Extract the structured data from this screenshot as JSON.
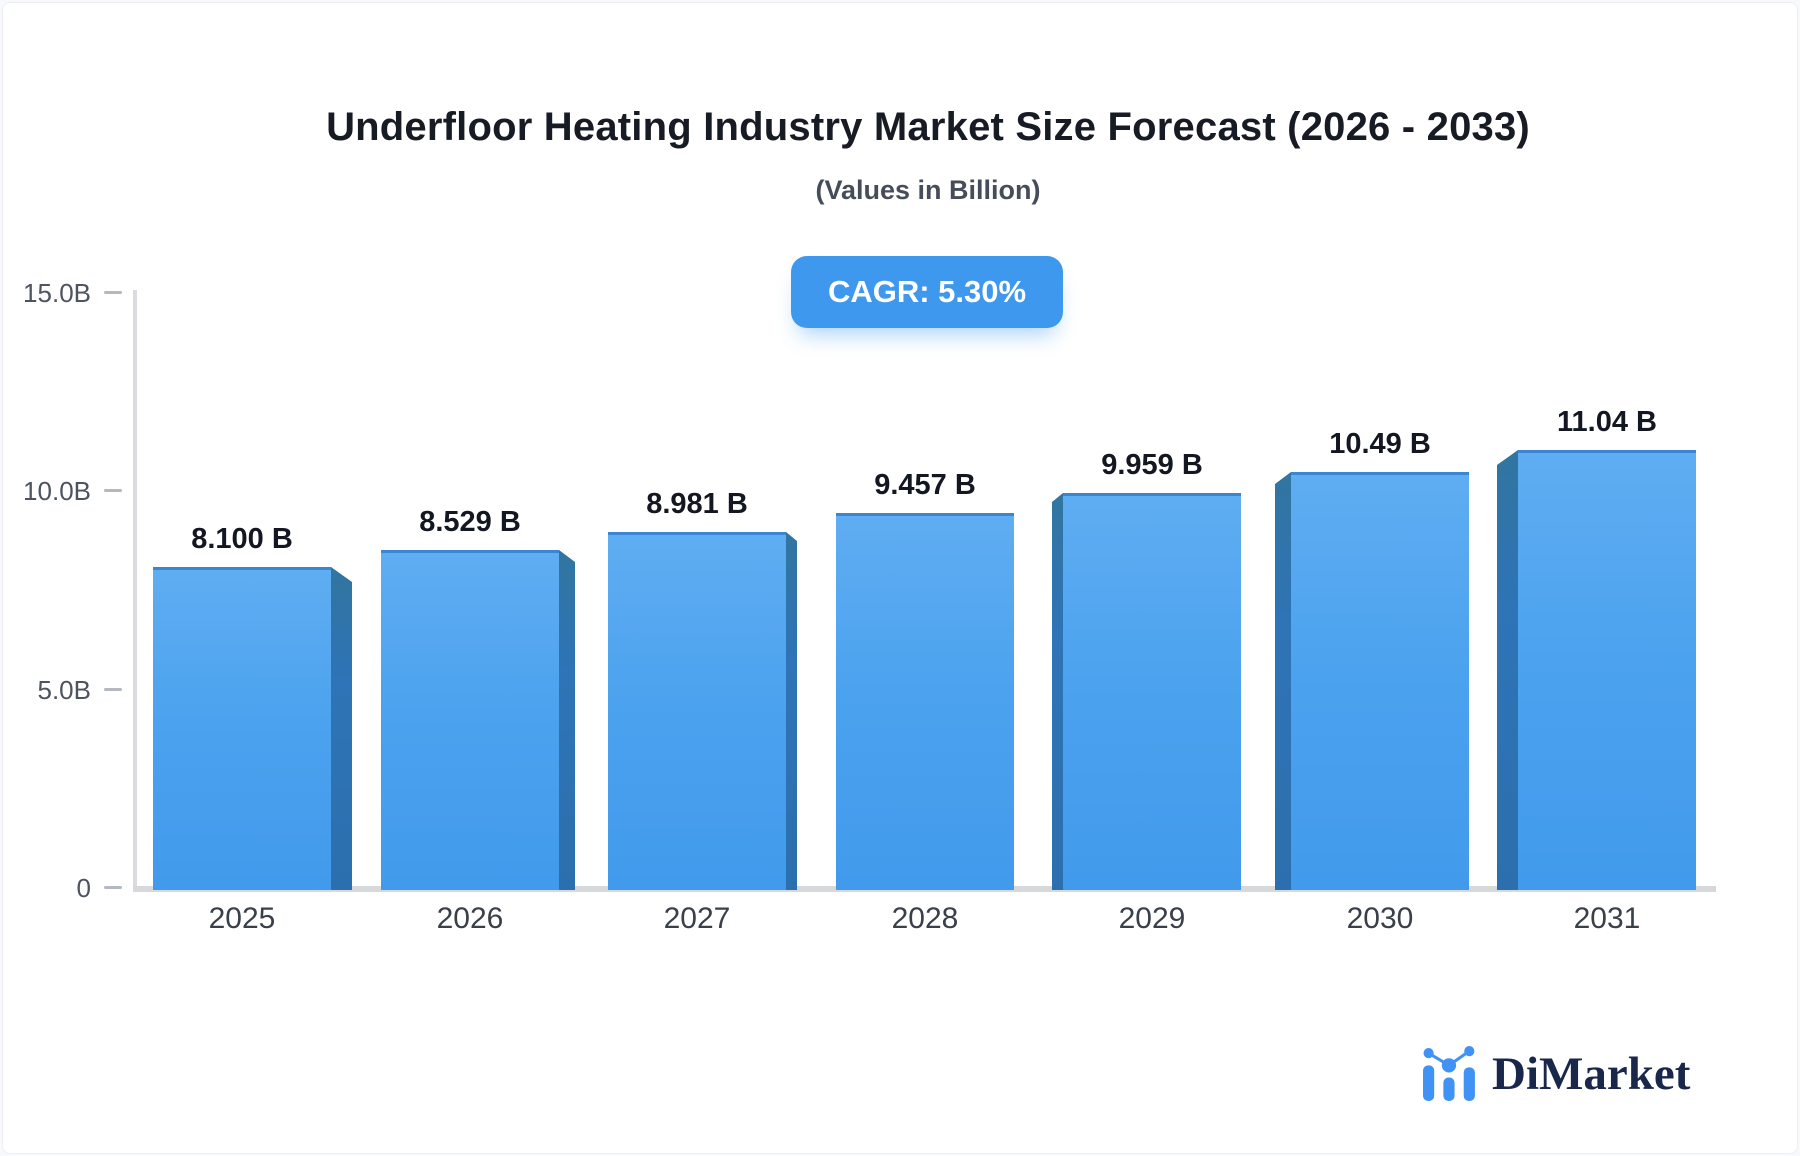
{
  "header": {
    "title": "Underfloor Heating Industry Market Size Forecast (2026 - 2033)",
    "subtitle": "(Values in Billion)",
    "cagr_badge": "CAGR: 5.30%"
  },
  "chart_data": {
    "type": "bar",
    "title": "Underfloor Heating Industry Market Size Forecast (2026 - 2033)",
    "subtitle": "(Values in Billion)",
    "annotation": "CAGR: 5.30%",
    "categories": [
      "2025",
      "2026",
      "2027",
      "2028",
      "2029",
      "2030",
      "2031"
    ],
    "values": [
      8.1,
      8.529,
      8.981,
      9.457,
      9.959,
      10.49,
      11.04
    ],
    "value_labels": [
      "8.100 B",
      "8.529 B",
      "8.981 B",
      "9.457 B",
      "9.959 B",
      "10.49 B",
      "11.04 B"
    ],
    "unit": "Billion",
    "xlabel": "",
    "ylabel": "",
    "ylim": [
      0,
      15
    ],
    "yticks": [
      {
        "value": 0,
        "label": "0"
      },
      {
        "value": 5,
        "label": "5.0B"
      },
      {
        "value": 10,
        "label": "10.0B"
      },
      {
        "value": 15,
        "label": "15.0B"
      }
    ],
    "grid": false,
    "legend": null,
    "style": "3d-perspective-bars"
  },
  "colors": {
    "bar_fill": "#4ba2ee",
    "bar_side": "#2e74b6",
    "badge_bg": "#3e99ee",
    "badge_text": "#ffffff",
    "axis": "#d6d8da",
    "logo_icon": "#4092f5",
    "logo_text": "#19284a"
  },
  "branding": {
    "logo_text": "DiMarket"
  }
}
